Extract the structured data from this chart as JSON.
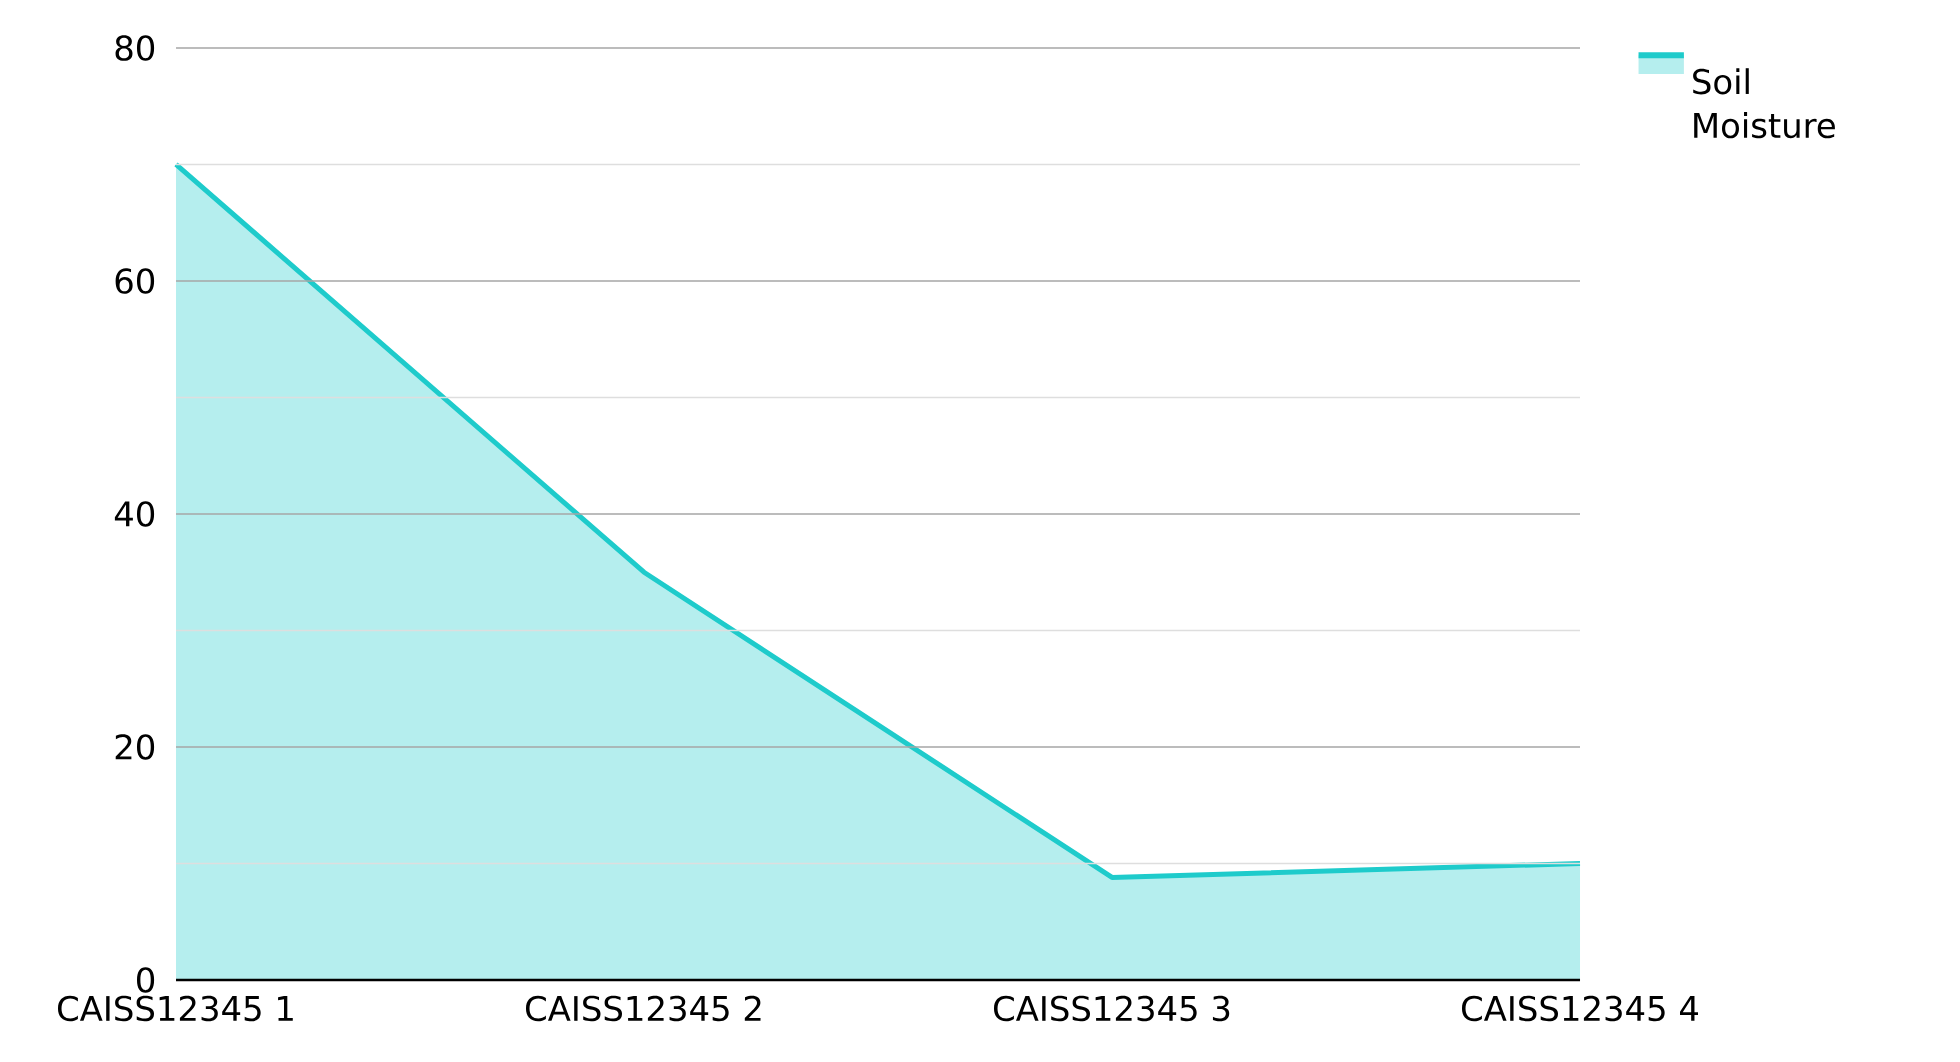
{
  "chart_data": {
    "type": "area",
    "categories": [
      "CAISS12345 1",
      "CAISS12345 2",
      "CAISS12345 3",
      "CAISS12345 4"
    ],
    "series": [
      {
        "name": "Soil Moisture",
        "color": "#1ecbcb",
        "values": [
          70,
          35,
          8.8,
          10
        ]
      }
    ],
    "ylim": [
      0,
      80
    ],
    "yticks": [
      0,
      {
        "value": 10,
        "label": null
      },
      20,
      {
        "value": 30,
        "label": null
      },
      40,
      {
        "value": 50,
        "label": null
      },
      60,
      {
        "value": 70,
        "label": null
      },
      80
    ],
    "grid": "y",
    "legend": "top right"
  }
}
